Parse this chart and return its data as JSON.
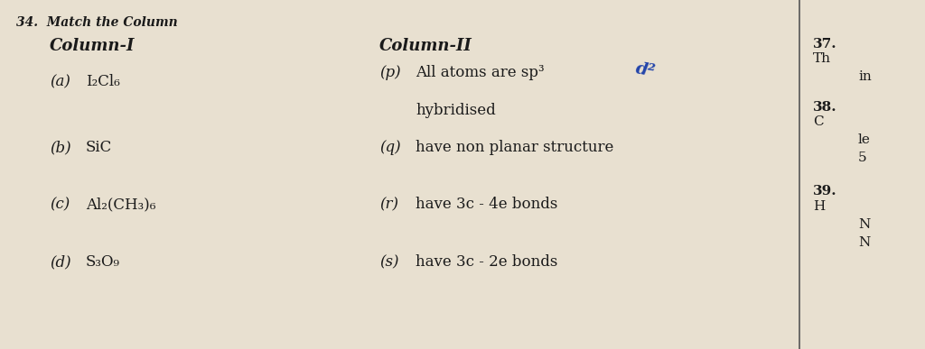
{
  "bg_color": "#e8e0d0",
  "text_color": "#1a1a1a",
  "header_color": "#1a1a1a",
  "top_text": "34.  Match the Column",
  "col1_header": "Column-I",
  "col2_header": "Column-II",
  "col1_items": [
    {
      "label": "(a)",
      "formula": "I₂Cl₆"
    },
    {
      "label": "(b)",
      "formula": "SiC"
    },
    {
      "label": "(c)",
      "formula": "Al₂(CH₃)₆"
    },
    {
      "label": "(d)",
      "formula": "S₃O₉"
    }
  ],
  "col2_items": [
    {
      "label": "(p)",
      "text": "All atoms are sp³ d²\nhybridised"
    },
    {
      "label": "(q)",
      "text": "have non planar structure"
    },
    {
      "label": "(r)",
      "text": "have 3c - 4e bonds"
    },
    {
      "label": "(s)",
      "text": "have 3c - 2e bonds"
    }
  ],
  "right_col_text": [
    "37.  Th",
    "in",
    "38.  C",
    "le",
    "5",
    "39.  H",
    "N",
    "N"
  ],
  "fig_width": 10.24,
  "fig_height": 3.87,
  "dpi": 100
}
